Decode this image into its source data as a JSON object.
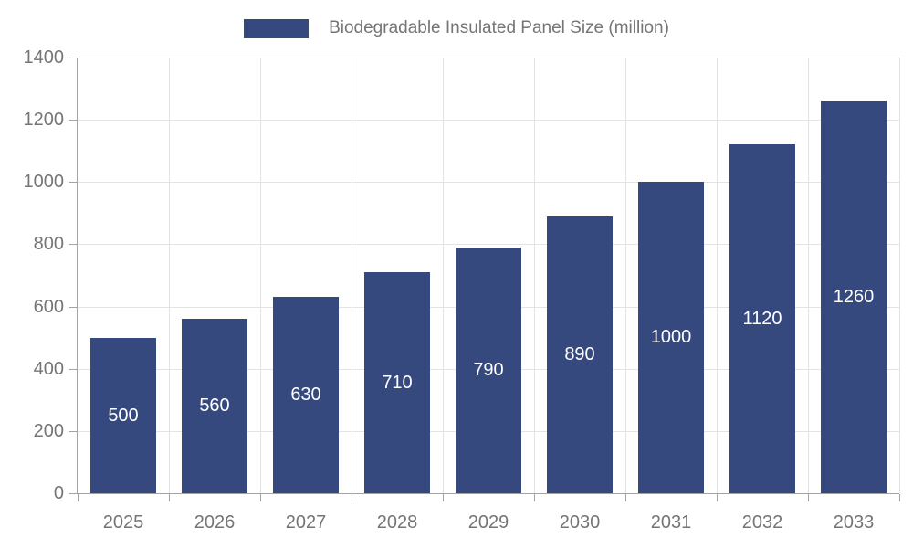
{
  "legend": {
    "label": "Biodegradable Insulated Panel Size (million)"
  },
  "chart_data": {
    "type": "bar",
    "title": "Biodegradable Insulated Panel Size (million)",
    "categories": [
      "2025",
      "2026",
      "2027",
      "2028",
      "2029",
      "2030",
      "2031",
      "2032",
      "2033"
    ],
    "values": [
      500,
      560,
      630,
      710,
      790,
      890,
      1000,
      1120,
      1260
    ],
    "xlabel": "",
    "ylabel": "",
    "ylim": [
      0,
      1400
    ],
    "yticks": [
      0,
      200,
      400,
      600,
      800,
      1000,
      1200,
      1400
    ],
    "grid": true,
    "legend_position": "top-center",
    "bar_label_position": "center-inside"
  },
  "colors": {
    "bar": "#36497F",
    "bar_label": "#ffffff",
    "axis_line": "#a3a3a3",
    "gridline": "#e3e3e3",
    "tick_text": "#757575",
    "legend_text": "#757575",
    "background": "#ffffff"
  }
}
